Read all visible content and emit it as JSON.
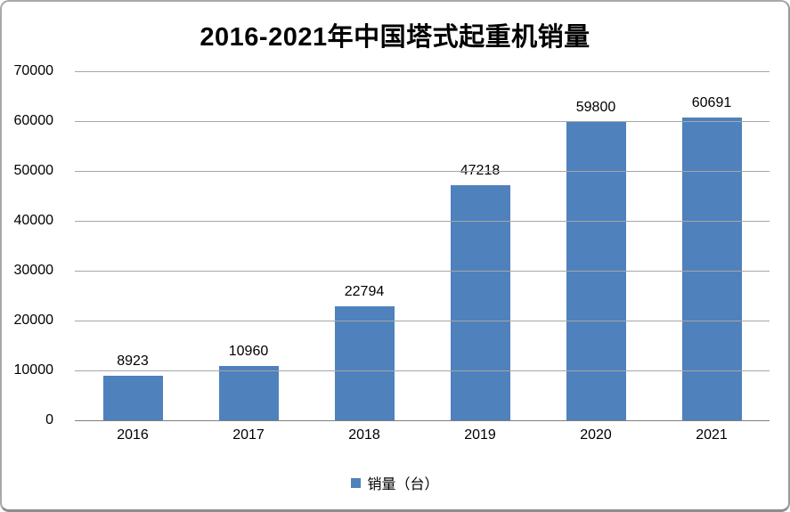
{
  "chart_data": {
    "type": "bar",
    "title": "2016-2021年中国塔式起重机销量",
    "categories": [
      "2016",
      "2017",
      "2018",
      "2019",
      "2020",
      "2021"
    ],
    "series": [
      {
        "name": "销量（台）",
        "values": [
          8923,
          10960,
          22794,
          47218,
          59800,
          60691
        ]
      }
    ],
    "xlabel": "",
    "ylabel": "",
    "ylim": [
      0,
      70000
    ],
    "yticks": [
      0,
      10000,
      20000,
      30000,
      40000,
      50000,
      60000,
      70000
    ],
    "grid": true,
    "data_labels": true,
    "legend_position": "bottom",
    "colors": {
      "bar": "#4f81bd",
      "gridline": "#a6a6a6",
      "axis_line": "#7f7f7f",
      "text": "#000000",
      "frame_border": "#a9a9a9",
      "background": "#ffffff"
    }
  }
}
